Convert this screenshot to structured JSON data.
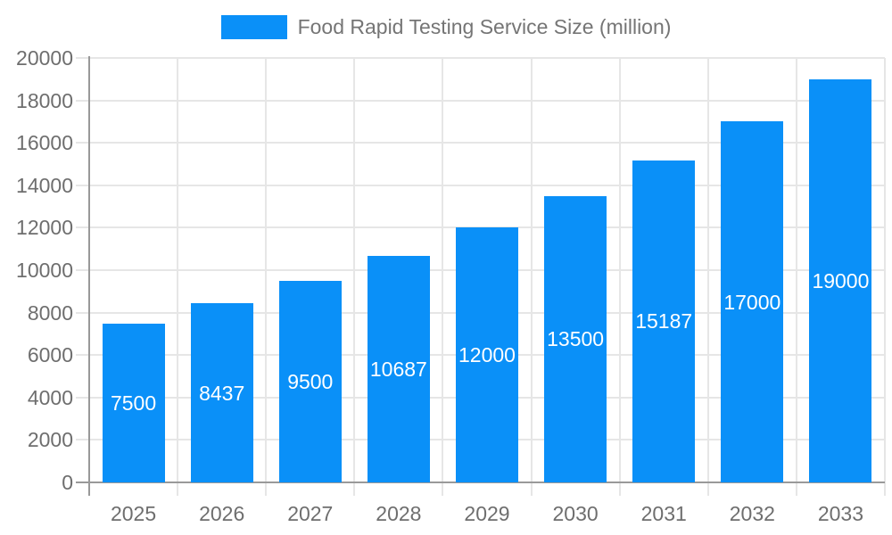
{
  "chart_data": {
    "type": "bar",
    "title": "Food Rapid Testing Service Size (million)",
    "legend": {
      "label": "Food Rapid Testing Service Size (million)",
      "position": "top-center"
    },
    "categories": [
      "2025",
      "2026",
      "2027",
      "2028",
      "2029",
      "2030",
      "2031",
      "2032",
      "2033"
    ],
    "values": [
      7500,
      8437,
      9500,
      10687,
      12000,
      13500,
      15187,
      17000,
      19000
    ],
    "bar_labels": [
      "7500",
      "8437",
      "9500",
      "10687",
      "12000",
      "13500",
      "15187",
      "17000",
      "19000"
    ],
    "xlabel": "",
    "ylabel": "",
    "ylim": [
      0,
      20000
    ],
    "ytick_step": 2000,
    "yticks": [
      "0",
      "2000",
      "4000",
      "6000",
      "8000",
      "10000",
      "12000",
      "14000",
      "16000",
      "18000",
      "20000"
    ],
    "grid": true,
    "colors": {
      "bar_fill": "#0a90f8",
      "bar_value_text": "#ffffff",
      "axis_line": "#999999",
      "grid_line": "#e6e6e6",
      "tick_text": "#6e6e6e",
      "legend_text": "#757575",
      "background": "#ffffff"
    }
  }
}
